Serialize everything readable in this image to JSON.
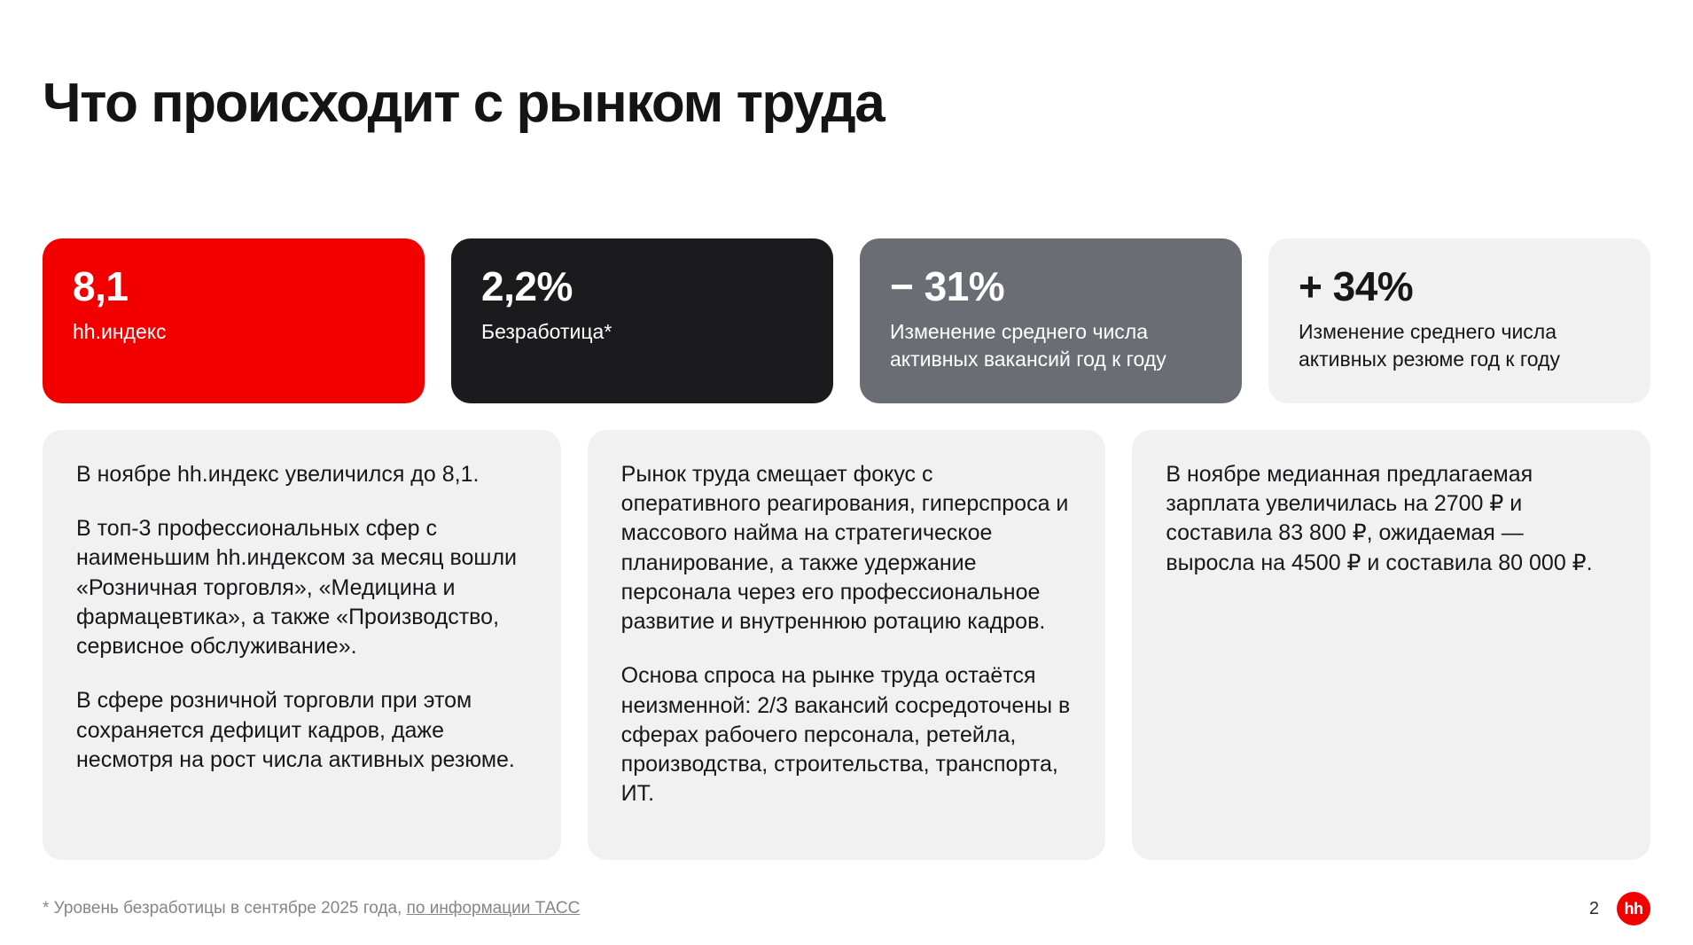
{
  "page": {
    "title": "Что происходит с рынком труда",
    "page_number": "2",
    "logo_text": "hh"
  },
  "colors": {
    "brand_red": "#f20000",
    "card_black": "#1b1b1d",
    "card_gray": "#6a6d74",
    "card_light_gray": "#f1f1f2",
    "text_dark": "#17171a",
    "footnote_gray": "#85858a"
  },
  "stat_cards": [
    {
      "value": "8,1",
      "label": "hh.индекс",
      "variant": "red"
    },
    {
      "value": "2,2%",
      "label": "Безработица*",
      "variant": "black"
    },
    {
      "value": "− 31%",
      "label": "Изменение среднего числа активных вакансий год к году",
      "variant": "gray"
    },
    {
      "value": "+ 34%",
      "label": "Изменение среднего числа активных резюме год к году",
      "variant": "light"
    }
  ],
  "text_boxes": [
    {
      "paragraphs": [
        "В ноябре hh.индекс увеличился до 8,1.",
        "В топ-3 профессиональных сфер с наименьшим hh.индексом за месяц вошли «Розничная торговля», «Медицина и фармацевтика», а также «Производство, сервисное обслуживание».",
        "В сфере розничной торговли при этом сохраняется дефицит кадров, даже несмотря на рост числа активных резюме."
      ]
    },
    {
      "paragraphs": [
        "Рынок труда смещает фокус с оперативного реагирования, гиперспроса и массового найма на стратегическое планирование, а также удержание персонала через его профессиональное развитие и внутреннюю ротацию кадров.",
        "Основа спроса на рынке труда остаётся неизменной: 2/3 вакансий сосредоточены в сферах рабочего персонала, ретейла, производства, строительства, транспорта, ИТ."
      ]
    },
    {
      "paragraphs": [
        "В ноябре медианная предлагаемая зарплата увеличилась на 2700 ₽ и составила 83 800 ₽, ожидаемая — выросла на 4500 ₽ и составила 80 000 ₽."
      ]
    }
  ],
  "footer": {
    "note_prefix": "* Уровень безработицы в сентябре 2025 года, ",
    "link_text": "по информации ТАСС"
  }
}
